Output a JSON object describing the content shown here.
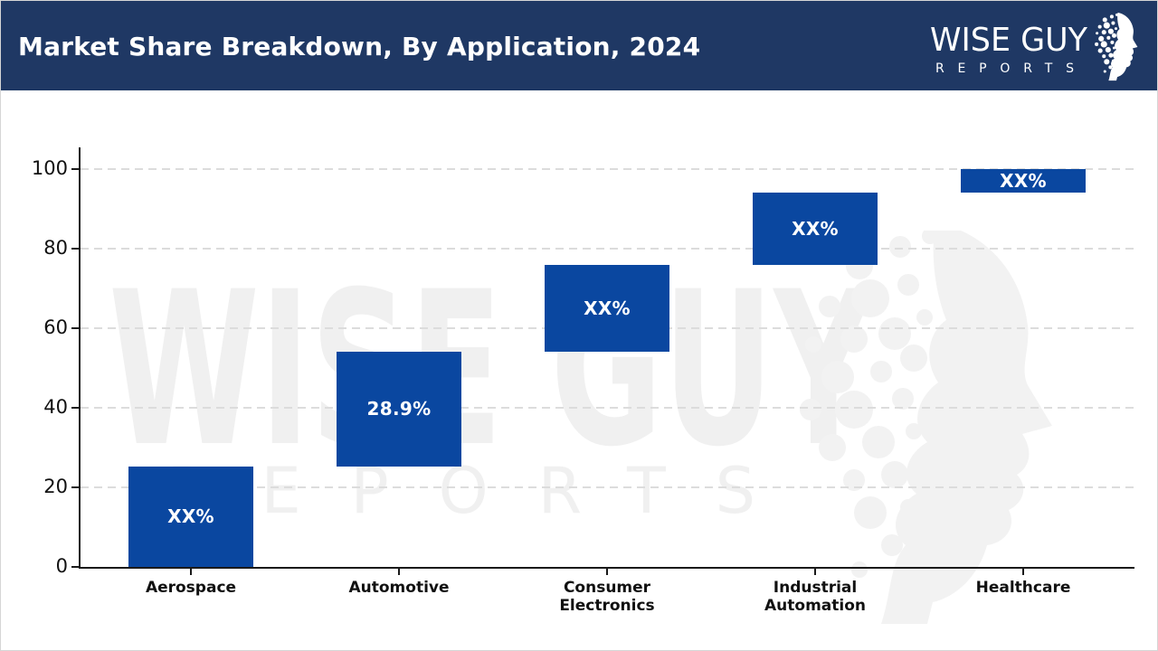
{
  "header": {
    "title": "Market Share Breakdown, By Application, 2024",
    "logo": {
      "line1": "WISE GUY",
      "line2": "REPORTS"
    }
  },
  "watermark": {
    "line1": "WISE GUY",
    "line2": "REPORTS"
  },
  "colors": {
    "header_bg": "#1f3864",
    "bar": "#0a47a0",
    "axis": "#1a1a1a",
    "grid": "#dcdcdc",
    "watermark": "#f0f0f0",
    "bar_label_text": "#ffffff"
  },
  "chart_data": {
    "type": "bar",
    "subtype": "waterfall",
    "title": "Market Share Breakdown, By Application, 2024",
    "categories": [
      "Aerospace",
      "Automotive",
      "Consumer\nElectronics",
      "Industrial\nAutomation",
      "Healthcare"
    ],
    "segments": [
      {
        "category": "Aerospace",
        "start": 0,
        "end": 25.3,
        "label": "XX%"
      },
      {
        "category": "Automotive",
        "start": 25.3,
        "end": 54.2,
        "label": "28.9%",
        "value": 28.9
      },
      {
        "category": "Consumer Electronics",
        "start": 54.2,
        "end": 76.0,
        "label": "XX%"
      },
      {
        "category": "Industrial Automation",
        "start": 76.0,
        "end": 94.0,
        "label": "XX%"
      },
      {
        "category": "Healthcare",
        "start": 94.0,
        "end": 100.0,
        "label": "XX%"
      }
    ],
    "yticks": [
      0,
      20,
      40,
      60,
      80,
      100
    ],
    "ylim": [
      0,
      105
    ],
    "xlabel": "",
    "ylabel": "",
    "grid": "horizontal-dashed",
    "legend": "none"
  }
}
